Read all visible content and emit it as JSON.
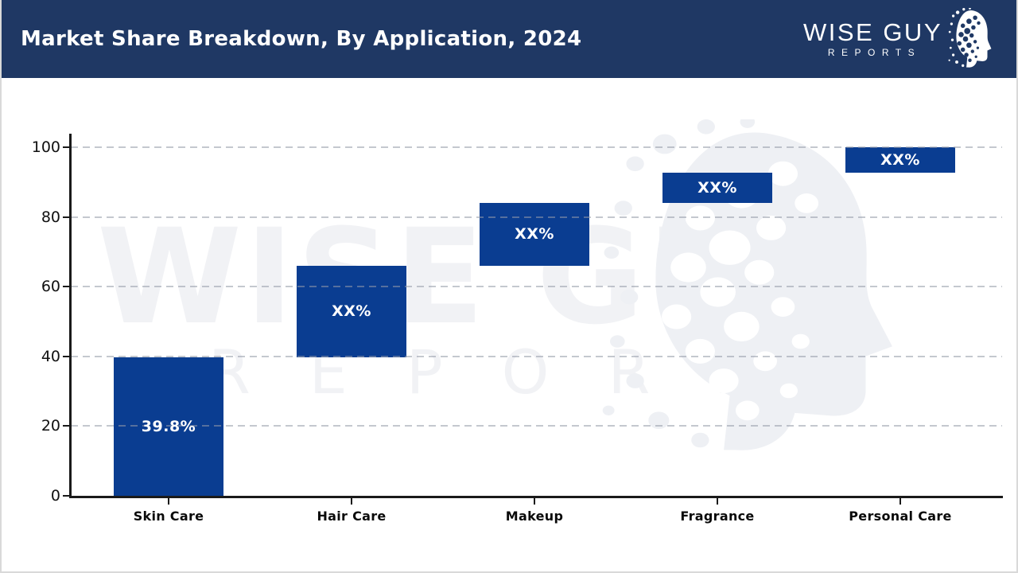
{
  "header": {
    "title": "Market Share Breakdown, By Application, 2024",
    "logo": {
      "wordmark": "WISE GUY",
      "subtitle": "REPORTS"
    }
  },
  "watermark": {
    "wordmark": "WISE GUY",
    "subtitle": "REPORTS"
  },
  "colors": {
    "header_bg": "#1f3864",
    "bar": "#0a3d91",
    "bar_label": "#ffffff",
    "axis": "#1a1a1a",
    "watermark_text": "#f1f2f5",
    "watermark_head": "#eef0f4",
    "page_border": "#d9d9d9"
  },
  "chart_data": {
    "type": "bar",
    "subtype": "waterfall",
    "title": "Market Share Breakdown, By Application, 2024",
    "unit": "%",
    "categories": [
      "Skin Care",
      "Hair Care",
      "Makeup",
      "Fragrance",
      "Personal Care"
    ],
    "segments": [
      {
        "category": "Skin Care",
        "start": 0,
        "end": 39.8,
        "label": "39.8%"
      },
      {
        "category": "Hair Care",
        "start": 39.8,
        "end": 66,
        "label": "XX%"
      },
      {
        "category": "Makeup",
        "start": 66,
        "end": 84,
        "label": "XX%"
      },
      {
        "category": "Fragrance",
        "start": 84,
        "end": 92.7,
        "label": "XX%"
      },
      {
        "category": "Personal Care",
        "start": 92.7,
        "end": 100,
        "label": "XX%"
      }
    ],
    "y_ticks": [
      0,
      20,
      40,
      60,
      80,
      100
    ],
    "ylim": [
      0,
      104
    ],
    "xlabel": "",
    "ylabel": "",
    "grid": "horizontal-dashed",
    "legend": "none"
  }
}
